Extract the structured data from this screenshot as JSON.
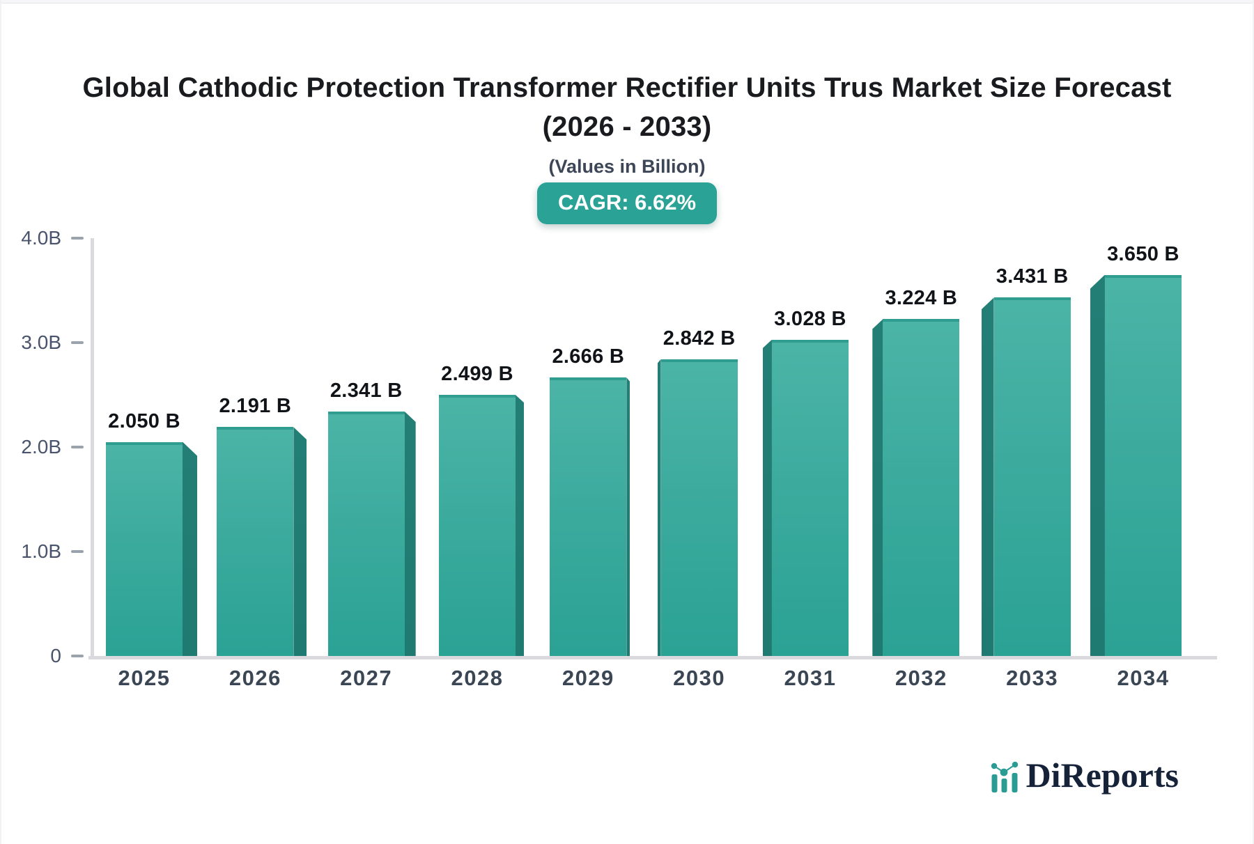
{
  "header": {
    "title_line1": "Global Cathodic Protection Transformer Rectifier Units Trus Market Size Forecast",
    "title_line2": "(2026 - 2033)",
    "subtitle": "(Values in Billion)",
    "cagr_label": "CAGR: 6.62%"
  },
  "chart_data": {
    "type": "bar",
    "title": "Global Cathodic Protection Transformer Rectifier Units Trus Market Size Forecast (2026 - 2033)",
    "subtitle": "(Values in Billion)",
    "unit": "Billion",
    "cagr": "6.62%",
    "categories": [
      "2025",
      "2026",
      "2027",
      "2028",
      "2029",
      "2030",
      "2031",
      "2032",
      "2033",
      "2034"
    ],
    "values": [
      2.05,
      2.191,
      2.341,
      2.499,
      2.666,
      2.842,
      3.028,
      3.224,
      3.431,
      3.65
    ],
    "value_labels": [
      "2.050 B",
      "2.191 B",
      "2.341 B",
      "2.499 B",
      "2.666 B",
      "2.842 B",
      "3.028 B",
      "3.224 B",
      "3.431 B",
      "3.650 B"
    ],
    "xlabel": "",
    "ylabel": "",
    "ylim": [
      0,
      4
    ],
    "yticks": [
      {
        "label": "4.0B",
        "value": 4.0
      },
      {
        "label": "3.0B",
        "value": 3.0
      },
      {
        "label": "2.0B",
        "value": 2.0
      },
      {
        "label": "1.0B",
        "value": 1.0
      },
      {
        "label": "0",
        "value": 0.0
      }
    ],
    "grid": false,
    "legend": false
  },
  "colors": {
    "bar_face_top": "#4bb4a7",
    "bar_face_bottom": "#2aa294",
    "bar_side": "#1f7a71",
    "bar_top_edge": "#2f9e91",
    "badge_background": "#2aa396",
    "badge_text": "#ffffff",
    "axis_line": "#d9d9de",
    "tick_mark": "#9aa2ab",
    "axis_label_text": "#49536b",
    "year_label_text": "#3b4654",
    "value_label_text": "#101418",
    "logo_navy": "#152238",
    "logo_teal": "#2b9c94"
  },
  "logo": {
    "text": "DiReports",
    "icon": "mini-bar-line-chart-icon"
  }
}
